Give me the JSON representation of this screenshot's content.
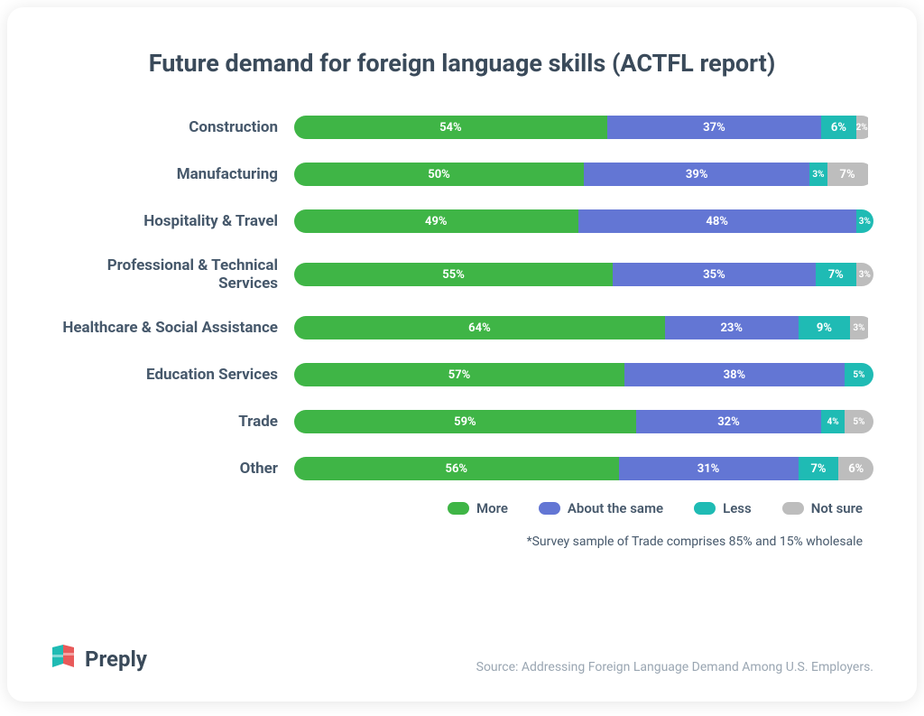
{
  "title": "Future demand for foreign language skills (ACTFL report)",
  "colors": {
    "more": "#3fb546",
    "same": "#6376d4",
    "less": "#1fbbb4",
    "notsure": "#bdbdbd",
    "text": "#46586b",
    "title": "#3a4a5a"
  },
  "legend": [
    {
      "key": "more",
      "label": "More"
    },
    {
      "key": "same",
      "label": "About the same"
    },
    {
      "key": "less",
      "label": "Less"
    },
    {
      "key": "notsure",
      "label": "Not sure"
    }
  ],
  "rows": [
    {
      "label": "Construction",
      "values": {
        "more": 54,
        "same": 37,
        "less": 6,
        "notsure": 2
      },
      "show": {
        "more": "54%",
        "same": "37%",
        "less": "6%",
        "notsure": "2%"
      }
    },
    {
      "label": "Manufacturing",
      "values": {
        "more": 50,
        "same": 39,
        "less": 3,
        "notsure": 7
      },
      "show": {
        "more": "50%",
        "same": "39%",
        "less": "3%",
        "notsure": "7%"
      }
    },
    {
      "label": "Hospitality & Travel",
      "values": {
        "more": 49,
        "same": 48,
        "less": 3,
        "notsure": 0
      },
      "show": {
        "more": "49%",
        "same": "48%",
        "less": "3%",
        "notsure": ""
      }
    },
    {
      "label": "Professional & Technical Services",
      "values": {
        "more": 55,
        "same": 35,
        "less": 7,
        "notsure": 3
      },
      "show": {
        "more": "55%",
        "same": "35%",
        "less": "7%",
        "notsure": "3%"
      }
    },
    {
      "label": "Healthcare & Social Assistance",
      "values": {
        "more": 64,
        "same": 23,
        "less": 9,
        "notsure": 3
      },
      "show": {
        "more": "64%",
        "same": "23%",
        "less": "9%",
        "notsure": "3%"
      }
    },
    {
      "label": "Education Services",
      "values": {
        "more": 57,
        "same": 38,
        "less": 5,
        "notsure": 0
      },
      "show": {
        "more": "57%",
        "same": "38%",
        "less": "5%",
        "notsure": ""
      }
    },
    {
      "label": "Trade",
      "values": {
        "more": 59,
        "same": 32,
        "less": 4,
        "notsure": 5
      },
      "show": {
        "more": "59%",
        "same": "32%",
        "less": "4%",
        "notsure": "5%"
      }
    },
    {
      "label": "Other",
      "values": {
        "more": 56,
        "same": 31,
        "less": 7,
        "notsure": 6
      },
      "show": {
        "more": "56%",
        "same": "31%",
        "less": "7%",
        "notsure": "6%"
      }
    }
  ],
  "footnote": "*Survey sample of Trade comprises 85% and 15% wholesale",
  "brand": "Preply",
  "source": "Source: Addressing Foreign Language Demand Among U.S. Employers."
}
